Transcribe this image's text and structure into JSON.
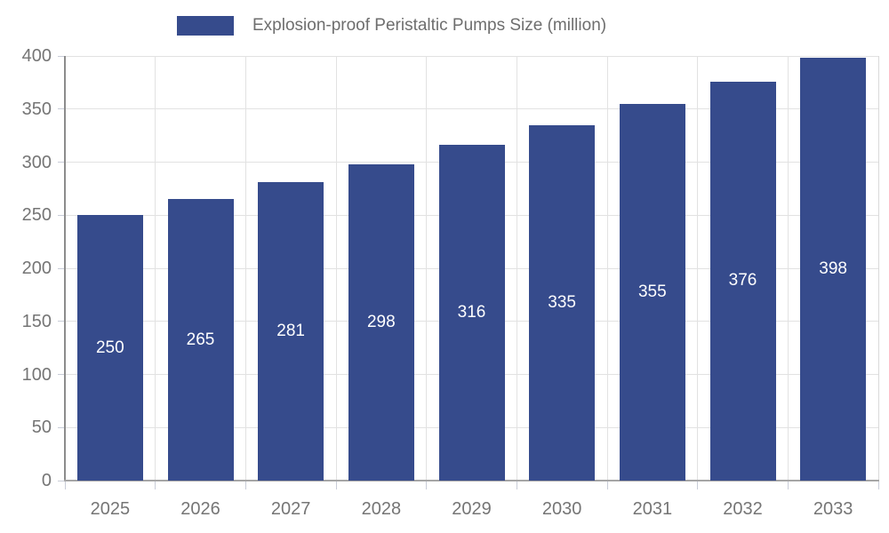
{
  "legend": {
    "label": "Explosion-proof Peristaltic Pumps Size (million)"
  },
  "chart_data": {
    "type": "bar",
    "title": "",
    "xlabel": "",
    "ylabel": "",
    "legend": "Explosion-proof Peristaltic Pumps Size (million)",
    "legend_position": "top",
    "grid": true,
    "categories": [
      "2025",
      "2026",
      "2027",
      "2028",
      "2029",
      "2030",
      "2031",
      "2032",
      "2033"
    ],
    "values": [
      250,
      265,
      281,
      298,
      316,
      335,
      355,
      376,
      398
    ],
    "ylim": [
      0,
      400
    ],
    "yticks": [
      0,
      50,
      100,
      150,
      200,
      250,
      300,
      350,
      400
    ],
    "colors": {
      "bar": "#364B8C",
      "bar_label": "#FFFFFF",
      "axis_text": "#757575",
      "legend_text": "#6E6E6E",
      "grid": "#E2E2E2",
      "y_spine": "#8C8C8C",
      "x_axis_line": "#A6A6A6",
      "tick": "#C9CDD8",
      "right_spine": "#D9D9D9"
    }
  }
}
